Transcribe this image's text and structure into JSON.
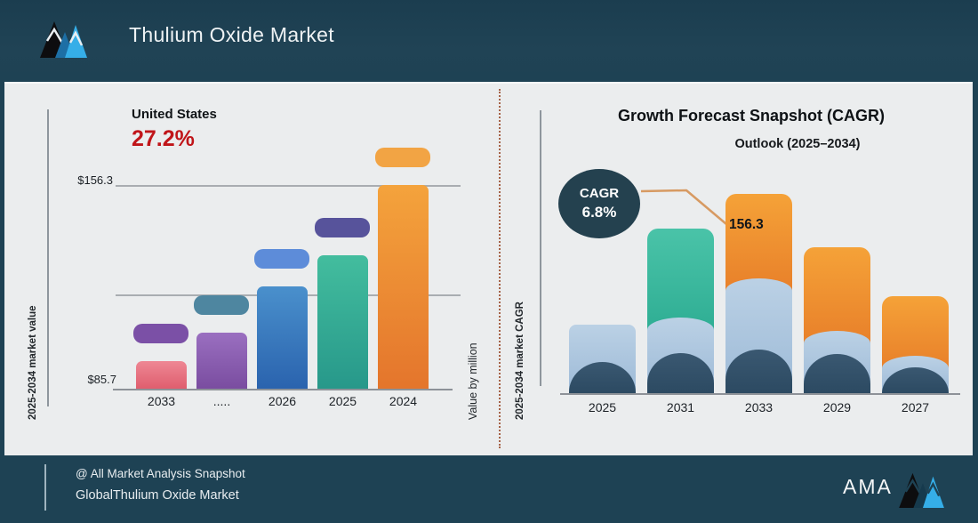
{
  "header": {
    "title": "Thulium Oxide Market"
  },
  "left_panel": {
    "region_label": "United States",
    "region_value": "27.2%",
    "y_axis_label": "2025-2034 market value",
    "tick_top": "$156.3",
    "tick_bottom": "$85.7"
  },
  "middle": {
    "value_axis_label": "Value by million"
  },
  "right_panel": {
    "y_axis_label": "2025-2034 market CAGR",
    "badge_line1": "CAGR",
    "badge_line2": "6.8%",
    "annotation": "156.3"
  },
  "footer": {
    "line1": "@ All Market Analysis Snapshot",
    "line2": "GlobalThulium Oxide Market",
    "brand": "AMA"
  },
  "chart_data": [
    {
      "type": "bar",
      "title": "United States",
      "subtitle": "27.2%",
      "categories": [
        "2033",
        ".....",
        "2026",
        "2025",
        "2024"
      ],
      "values": [
        95.2,
        105.0,
        121.3,
        131.8,
        156.3
      ],
      "ylabel": "2025-2034 market value",
      "yticks": [
        85.7,
        156.3
      ],
      "ylim": [
        85.7,
        170
      ],
      "grid": "two horizontal gridlines at 156.3 and mid",
      "bar_gradients": [
        [
          "#ee8794",
          "#df5e6e"
        ],
        [
          "#9a6fc0",
          "#7a4da0"
        ],
        [
          "#4a90cc",
          "#2a63ae"
        ],
        [
          "#43bd9e",
          "#27988a"
        ],
        [
          "#f4a33c",
          "#e4752c"
        ]
      ],
      "cap_colors": [
        "#7b50a6",
        "#4e86a0",
        "#5d8cd9",
        "#57539b",
        "#f2a444"
      ]
    },
    {
      "type": "stacked-bar",
      "title": "Growth Forecast Snapshot (CAGR)",
      "subtitle": "Outlook (2025–2034)",
      "categories": [
        "2025",
        "2031",
        "2033",
        "2029",
        "2027"
      ],
      "series": [
        {
          "name": "base-navy",
          "values": [
            35,
            45,
            49,
            44,
            29
          ]
        },
        {
          "name": "mid-lightblue",
          "values": [
            42,
            40,
            80,
            26,
            13
          ]
        },
        {
          "name": "top-accent",
          "values": [
            0,
            100,
            95,
            94,
            67
          ]
        }
      ],
      "top_colors": [
        null,
        "green",
        "orange",
        "orange",
        "orange"
      ],
      "navy_gradient": [
        "#3a5871",
        "#2c4a62"
      ],
      "lightblue_gradient": [
        "#bbd1e5",
        "#9dbad7"
      ],
      "green_gradient": [
        "#4ac3a8",
        "#2fae94"
      ],
      "orange_gradient": [
        "#f5a238",
        "#e8802a"
      ],
      "badge": "CAGR 6.8%",
      "annotations": [
        {
          "category": "2033",
          "text": "156.3"
        }
      ],
      "ylabel": "2025-2034 market CAGR"
    }
  ]
}
